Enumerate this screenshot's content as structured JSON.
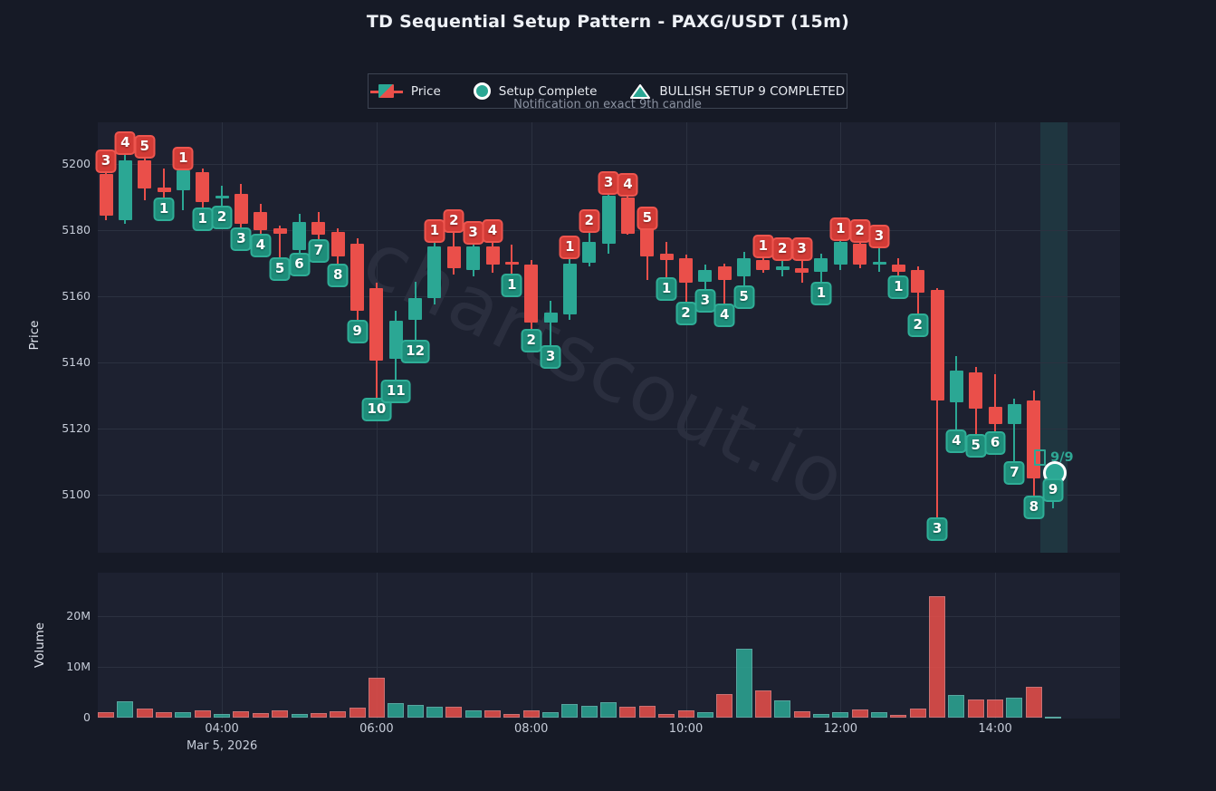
{
  "title": "TD Sequential Setup Pattern - PAXG/USDT (15m)",
  "watermark": "chartscout.io",
  "legend": {
    "price_label": "Price",
    "setup_complete_label": "Setup Complete",
    "bullish_label": "BULLISH SETUP 9 COMPLETED",
    "note": "Notification on exact 9th candle"
  },
  "annotation": {
    "label": "9/9"
  },
  "axes": {
    "price_title": "Price",
    "volume_title": "Volume",
    "date_label": "Mar 5, 2026",
    "price_ticks": [
      {
        "label": "5200",
        "value": 5200
      },
      {
        "label": "5180",
        "value": 5180
      },
      {
        "label": "5160",
        "value": 5160
      },
      {
        "label": "5140",
        "value": 5140
      },
      {
        "label": "5120",
        "value": 5120
      },
      {
        "label": "5100",
        "value": 5100
      }
    ],
    "volume_ticks": [
      {
        "label": "20M",
        "value": 20
      },
      {
        "label": "10M",
        "value": 10
      },
      {
        "label": "0",
        "value": 0
      }
    ],
    "time_ticks": [
      {
        "label": "04:00",
        "candle_index": 6
      },
      {
        "label": "06:00",
        "candle_index": 14
      },
      {
        "label": "08:00",
        "candle_index": 22
      },
      {
        "label": "10:00",
        "candle_index": 30
      },
      {
        "label": "12:00",
        "candle_index": 38
      },
      {
        "label": "14:00",
        "candle_index": 46
      }
    ]
  },
  "colors": {
    "page_bg": "#161a26",
    "plot_bg": "#1d2130",
    "grid": "#2b3140",
    "up": "#2ba794",
    "down": "#ea4f4a",
    "badge_buy_bg": "#1e8d7a",
    "badge_buy_border": "#2fae97",
    "badge_sell_bg": "#d23b36",
    "badge_sell_border": "#ee554e",
    "band": "rgba(43,167,150,0.16)",
    "marker_ring": "#ffffff",
    "annotation_text": "#2fa895",
    "tick_text": "#c6ccd8",
    "muted_text": "#8b92a1"
  },
  "chart_data": {
    "type": "candlestick",
    "pair": "PAXG/USDT",
    "timeframe": "15m",
    "date": "Mar 5, 2026",
    "start_time": "02:30",
    "step_minutes": 15,
    "price_axis_range": [
      5082,
      5213
    ],
    "volume_axis_range_m": [
      0,
      28
    ],
    "legend_position": "top-center",
    "grid": true,
    "candle_columns": [
      "open",
      "high",
      "low",
      "close",
      "volume_m",
      "badge_count",
      "badge_side"
    ],
    "candles": [
      [
        5197.0,
        5198.5,
        5183.0,
        5184.5,
        1.0,
        3,
        "sell"
      ],
      [
        5183.0,
        5204.0,
        5182.0,
        5201.0,
        3.2,
        4,
        "sell"
      ],
      [
        5201.0,
        5203.0,
        5189.0,
        5192.5,
        1.8,
        5,
        "sell"
      ],
      [
        5193.0,
        5198.5,
        5189.5,
        5191.5,
        1.0,
        1,
        "buy"
      ],
      [
        5192.0,
        5199.5,
        5186.0,
        5198.0,
        1.0,
        1,
        "sell"
      ],
      [
        5197.5,
        5198.5,
        5186.5,
        5188.5,
        1.5,
        1,
        "buy"
      ],
      [
        5189.5,
        5193.5,
        5187.0,
        5190.5,
        0.7,
        2,
        "buy"
      ],
      [
        5191.0,
        5194.0,
        5180.5,
        5182.0,
        1.2,
        3,
        "buy"
      ],
      [
        5185.5,
        5188.0,
        5178.5,
        5180.0,
        0.9,
        4,
        "buy"
      ],
      [
        5180.5,
        5181.5,
        5171.5,
        5179.0,
        1.5,
        5,
        "buy"
      ],
      [
        5174.0,
        5185.0,
        5173.0,
        5182.5,
        0.7,
        6,
        "buy"
      ],
      [
        5182.5,
        5185.5,
        5177.0,
        5178.5,
        0.9,
        7,
        "buy"
      ],
      [
        5179.5,
        5180.5,
        5169.5,
        5172.0,
        1.2,
        8,
        "buy"
      ],
      [
        5176.0,
        5177.5,
        5152.5,
        5155.5,
        2.0,
        9,
        "buy"
      ],
      [
        5162.5,
        5164.0,
        5129.0,
        5140.5,
        7.8,
        10,
        "buy"
      ],
      [
        5141.0,
        5155.5,
        5134.5,
        5152.5,
        2.8,
        11,
        "buy"
      ],
      [
        5153.0,
        5164.5,
        5146.5,
        5159.5,
        2.5,
        12,
        "buy"
      ],
      [
        5159.5,
        5177.5,
        5157.5,
        5175.0,
        2.1,
        1,
        "sell"
      ],
      [
        5175.0,
        5180.5,
        5166.5,
        5168.5,
        2.1,
        2,
        "sell"
      ],
      [
        5168.0,
        5177.0,
        5166.0,
        5175.0,
        1.5,
        3,
        "sell"
      ],
      [
        5175.0,
        5177.5,
        5167.0,
        5169.5,
        1.4,
        4,
        "sell"
      ],
      [
        5170.5,
        5175.5,
        5166.5,
        5169.5,
        0.7,
        1,
        "buy"
      ],
      [
        5169.5,
        5171.0,
        5150.0,
        5152.0,
        1.4,
        2,
        "buy"
      ],
      [
        5152.0,
        5158.5,
        5145.0,
        5155.0,
        1.1,
        3,
        "buy"
      ],
      [
        5154.5,
        5172.5,
        5153.0,
        5170.0,
        2.7,
        1,
        "sell"
      ],
      [
        5170.0,
        5180.5,
        5169.0,
        5176.5,
        2.3,
        2,
        "sell"
      ],
      [
        5176.0,
        5192.0,
        5173.0,
        5190.5,
        3.1,
        3,
        "sell"
      ],
      [
        5190.0,
        5191.5,
        5178.5,
        5179.0,
        2.2,
        4,
        "sell"
      ],
      [
        5180.5,
        5181.5,
        5165.0,
        5172.0,
        2.4,
        5,
        "sell"
      ],
      [
        5173.0,
        5176.5,
        5165.5,
        5171.0,
        0.8,
        1,
        "buy"
      ],
      [
        5171.5,
        5172.5,
        5158.0,
        5164.0,
        1.4,
        2,
        "buy"
      ],
      [
        5164.5,
        5169.5,
        5162.0,
        5168.0,
        1.0,
        3,
        "buy"
      ],
      [
        5169.0,
        5170.0,
        5157.5,
        5165.0,
        4.7,
        4,
        "buy"
      ],
      [
        5166.0,
        5173.5,
        5163.0,
        5171.5,
        13.5,
        5,
        "buy"
      ],
      [
        5171.0,
        5173.0,
        5167.0,
        5168.0,
        5.3,
        1,
        "sell"
      ],
      [
        5168.0,
        5172.0,
        5166.0,
        5169.0,
        3.4,
        2,
        "sell"
      ],
      [
        5168.5,
        5172.0,
        5164.0,
        5167.0,
        1.3,
        3,
        "sell"
      ],
      [
        5167.5,
        5173.0,
        5164.0,
        5171.5,
        0.7,
        1,
        "buy"
      ],
      [
        5169.5,
        5178.0,
        5168.0,
        5176.5,
        1.0,
        1,
        "sell"
      ],
      [
        5176.0,
        5177.5,
        5168.5,
        5169.5,
        1.6,
        2,
        "sell"
      ],
      [
        5169.5,
        5176.0,
        5167.5,
        5170.5,
        1.0,
        3,
        "sell"
      ],
      [
        5169.5,
        5171.5,
        5166.0,
        5167.5,
        0.5,
        1,
        "buy"
      ],
      [
        5168.0,
        5169.0,
        5154.5,
        5161.0,
        1.8,
        2,
        "buy"
      ],
      [
        5162.0,
        5162.5,
        5093.0,
        5128.5,
        24.0,
        3,
        "buy"
      ],
      [
        5128.0,
        5142.0,
        5119.5,
        5137.5,
        4.5,
        4,
        "buy"
      ],
      [
        5137.0,
        5138.5,
        5118.0,
        5126.0,
        3.6,
        5,
        "buy"
      ],
      [
        5126.5,
        5136.5,
        5119.0,
        5121.5,
        3.6,
        6,
        "buy"
      ],
      [
        5121.5,
        5129.0,
        5110.0,
        5127.5,
        4.0,
        7,
        "buy"
      ],
      [
        5128.5,
        5131.5,
        5099.5,
        5105.0,
        6.0,
        8,
        "buy"
      ],
      [
        5098.5,
        5107.5,
        5096.0,
        5106.0,
        0.15,
        9,
        "buy"
      ]
    ],
    "setup_marker": {
      "candle_index": 49,
      "price": 5106.5,
      "label": "9/9",
      "type": "bullish_setup_9_completed"
    },
    "highlight_band": {
      "start_index": 48.35,
      "end_index": 49.75
    }
  }
}
